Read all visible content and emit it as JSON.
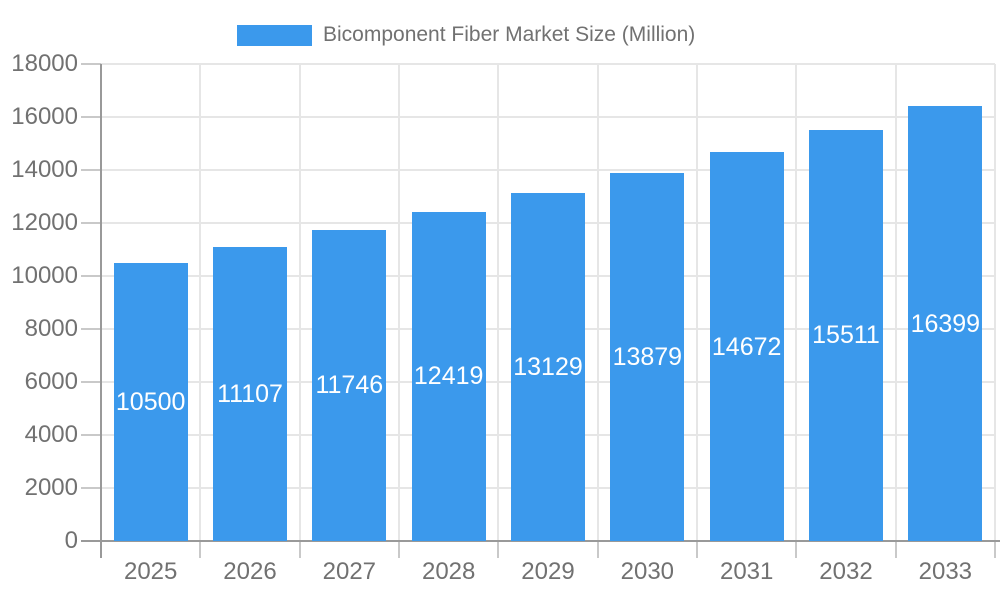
{
  "legend": {
    "label": "Bicomponent Fiber Market Size (Million)"
  },
  "chart_data": {
    "type": "bar",
    "title": "Bicomponent Fiber Market Size (Million)",
    "series_name": "Bicomponent Fiber Market Size (Million)",
    "categories": [
      "2025",
      "2026",
      "2027",
      "2028",
      "2029",
      "2030",
      "2031",
      "2032",
      "2033"
    ],
    "values": [
      10500,
      11107,
      11746,
      12419,
      13129,
      13879,
      14672,
      15511,
      16399
    ],
    "xlabel": "",
    "ylabel": "",
    "ylim": [
      0,
      18000
    ],
    "ytick_step": 2000,
    "yticks": [
      0,
      2000,
      4000,
      6000,
      8000,
      10000,
      12000,
      14000,
      16000,
      18000
    ],
    "grid": true,
    "legend_position": "top-center",
    "bar_label_position": "inside-middle",
    "colors": {
      "bar": "#3B99EC",
      "bar_label": "#FFFFFF",
      "axis_text": "#717171",
      "legend_text": "#717171",
      "axis_line": "#999999",
      "gridline": "#E6E6E6",
      "tick": "#C9C9C9",
      "background": "#FFFFFF"
    }
  }
}
